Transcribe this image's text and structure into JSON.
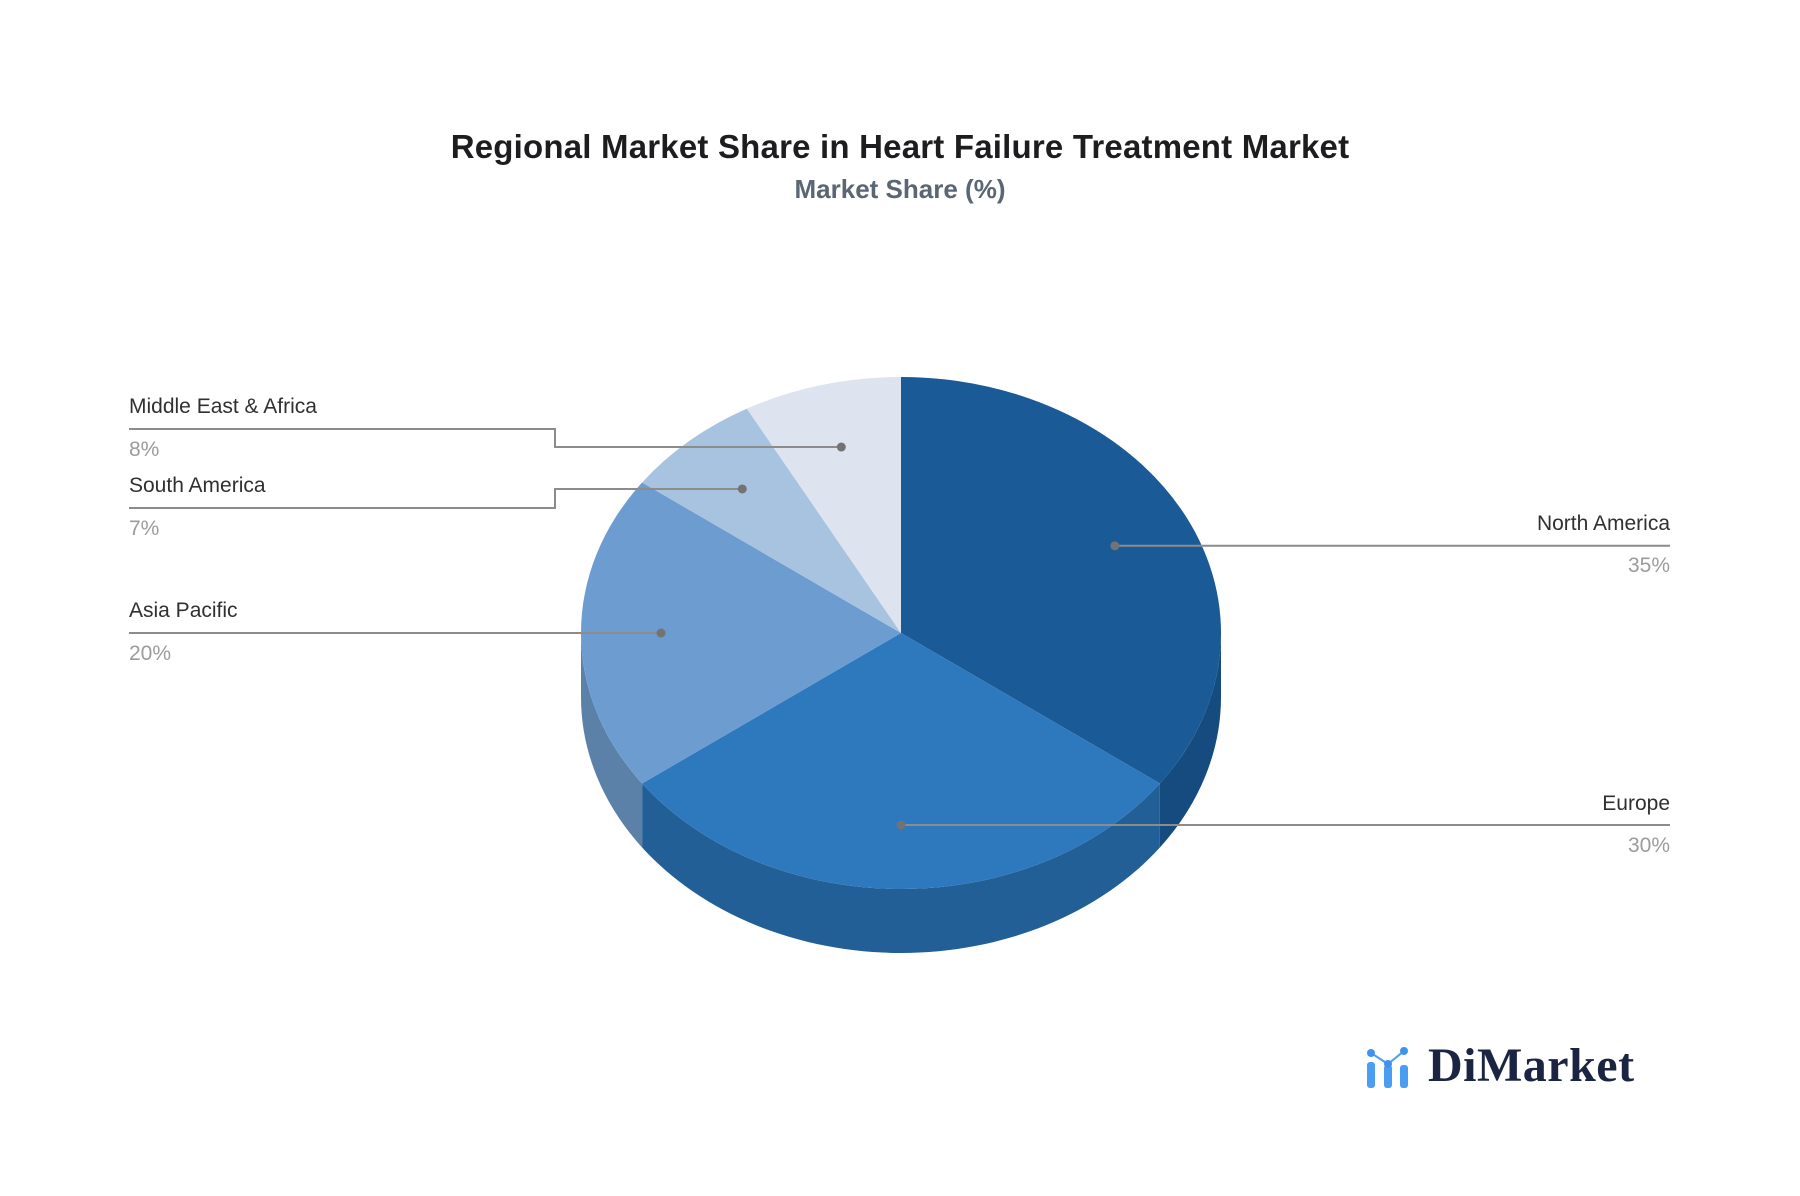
{
  "header": {
    "title": "Regional Market Share in Heart Failure Treatment Market",
    "subtitle": "Market Share (%)"
  },
  "chart_data": {
    "type": "pie",
    "style": "3d",
    "title": "Regional Market Share in Heart Failure Treatment Market",
    "subtitle": "Market Share (%)",
    "unit": "%",
    "direction": "clockwise",
    "start_angle_deg": 0,
    "legend": "none",
    "series": [
      {
        "name": "North America",
        "value": 35,
        "pct_label": "35%",
        "color": "#1a5a96",
        "side_color": "#154b7e",
        "label_side": "right"
      },
      {
        "name": "Europe",
        "value": 30,
        "pct_label": "30%",
        "color": "#2e79bd",
        "side_color": "#225f96",
        "label_side": "right"
      },
      {
        "name": "Asia Pacific",
        "value": 20,
        "pct_label": "20%",
        "color": "#6d9cd1",
        "side_color": "#5b81a8",
        "label_side": "left"
      },
      {
        "name": "South America",
        "value": 7,
        "pct_label": "7%",
        "color": "#a8c3e0",
        "side_color": "#8ba7c4",
        "label_side": "left"
      },
      {
        "name": "Middle East & Africa",
        "value": 8,
        "pct_label": "8%",
        "color": "#dde4ef",
        "side_color": "#b9c4d4",
        "label_side": "left"
      }
    ],
    "leader_line_color": "#8c8c8c",
    "leader_dot_color": "#737373",
    "label_text_color": "#303030",
    "value_text_color": "#9b9b9b"
  },
  "branding": {
    "logo_text": "DiMarket",
    "logo_icon": "bar-line-chart-icon",
    "logo_icon_color": "#4a9df2",
    "logo_text_color": "#1b2442"
  }
}
